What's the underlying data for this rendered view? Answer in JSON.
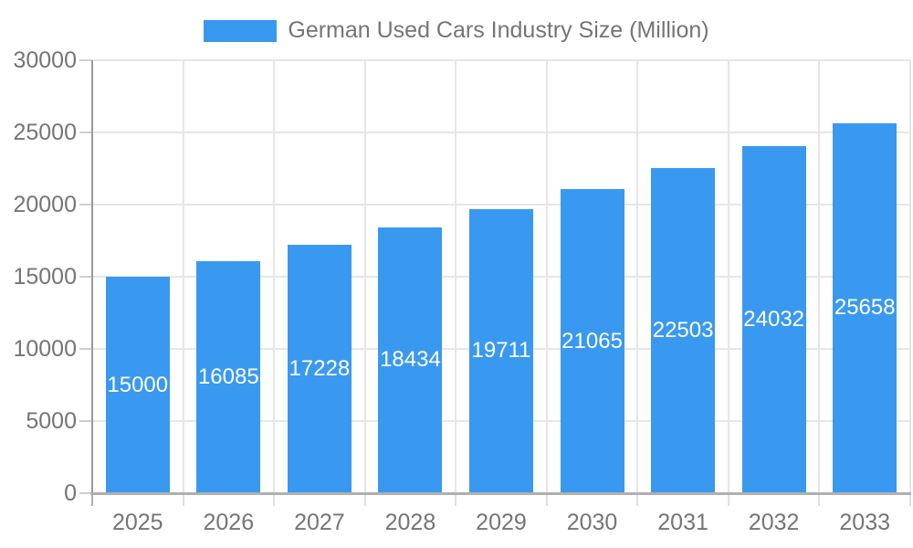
{
  "chart_data": {
    "type": "bar",
    "title": "German Used Cars Industry Size (Million)",
    "legend_entries": [
      "German Used Cars Industry Size (Million)"
    ],
    "legend_position": "top",
    "categories": [
      "2025",
      "2026",
      "2027",
      "2028",
      "2029",
      "2030",
      "2031",
      "2032",
      "2033"
    ],
    "series": [
      {
        "name": "German Used Cars Industry Size (Million)",
        "values": [
          15000,
          16085,
          17228,
          18434,
          19711,
          21065,
          22503,
          24032,
          25658
        ]
      }
    ],
    "bar_labels": [
      "15000",
      "16085",
      "17228",
      "18434",
      "19711",
      "21065",
      "22503",
      "24032",
      "25658"
    ],
    "xlabel": "",
    "ylabel": "",
    "ylim": [
      0,
      30000
    ],
    "yticks": [
      0,
      5000,
      10000,
      15000,
      20000,
      25000,
      30000
    ],
    "ytick_labels": [
      "0",
      "5000",
      "10000",
      "15000",
      "20000",
      "25000",
      "30000"
    ],
    "grid": true,
    "colors": {
      "bar": "#3999f0",
      "bar_label_text": "#ffffff",
      "axis_text": "#757575",
      "gridline": "#e6e6e6",
      "x_tick": "#e0e0e0",
      "y_tick": "#cfcfcf",
      "y_axis_line": "#9a9a9a",
      "baseline": "#b0b0b0",
      "background": "#ffffff"
    }
  }
}
